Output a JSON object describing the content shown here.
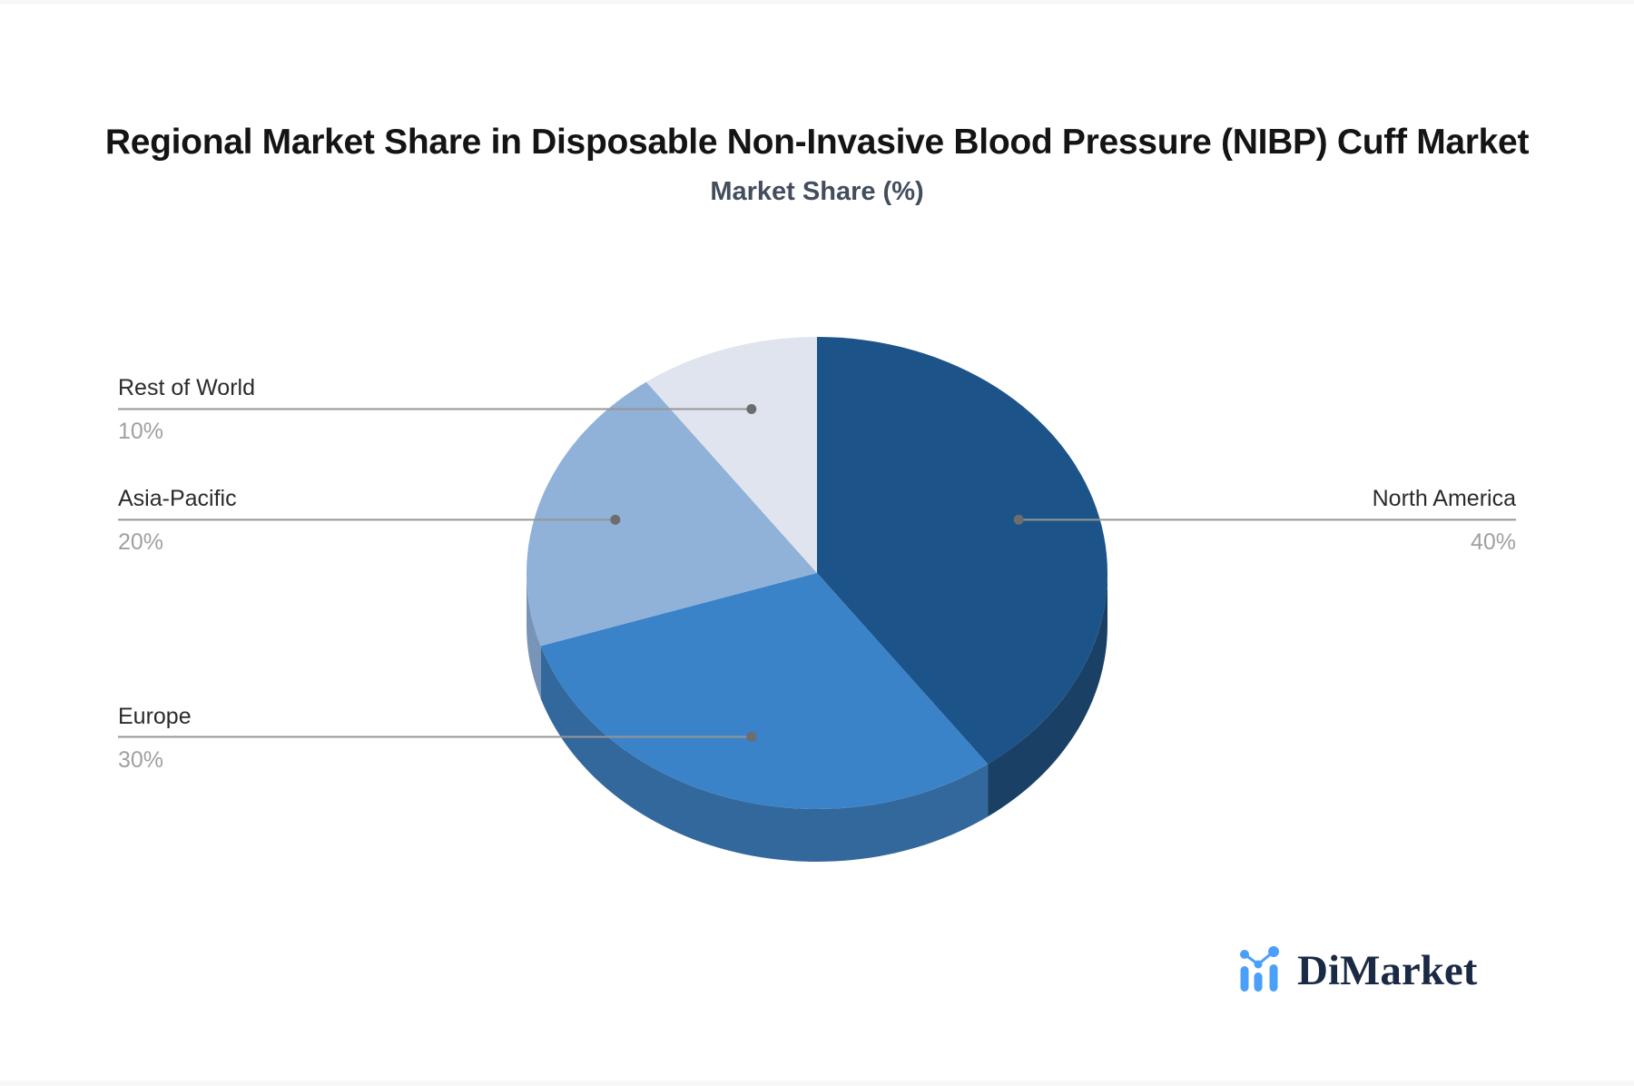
{
  "chart_data": {
    "type": "pie",
    "style": "3d-pie",
    "title": "Regional Market Share in Disposable Non-Invasive Blood Pressure (NIBP) Cuff Market",
    "subtitle": "Market Share (%)",
    "unit": "%",
    "direction": "clockwise",
    "start_angle": "12-oclock",
    "legend": "none",
    "labels": "leader-lines",
    "leader_line_color": "#969696",
    "leader_dot_color": "#6d6d6d",
    "slices": [
      {
        "label": "North America",
        "value": 40,
        "value_label": "40%",
        "color": "#1c5489",
        "side_color": "#1a4065",
        "label_side": "right"
      },
      {
        "label": "Europe",
        "value": 30,
        "value_label": "30%",
        "color": "#3a83c9",
        "side_color": "#33689c",
        "label_side": "left"
      },
      {
        "label": "Asia-Pacific",
        "value": 20,
        "value_label": "20%",
        "color": "#90b2d8",
        "side_color": "#7894b6",
        "label_side": "left"
      },
      {
        "label": "Rest of World",
        "value": 10,
        "value_label": "10%",
        "color": "#dfe4ee",
        "side_color": "#c3cdde",
        "label_side": "left"
      }
    ]
  },
  "branding": {
    "logo_text": "DiMarket",
    "logo_icon": "bar-chart-trend-icon",
    "logo_text_color": "#1a2a45",
    "logo_icon_color": "#4aa0f8"
  }
}
